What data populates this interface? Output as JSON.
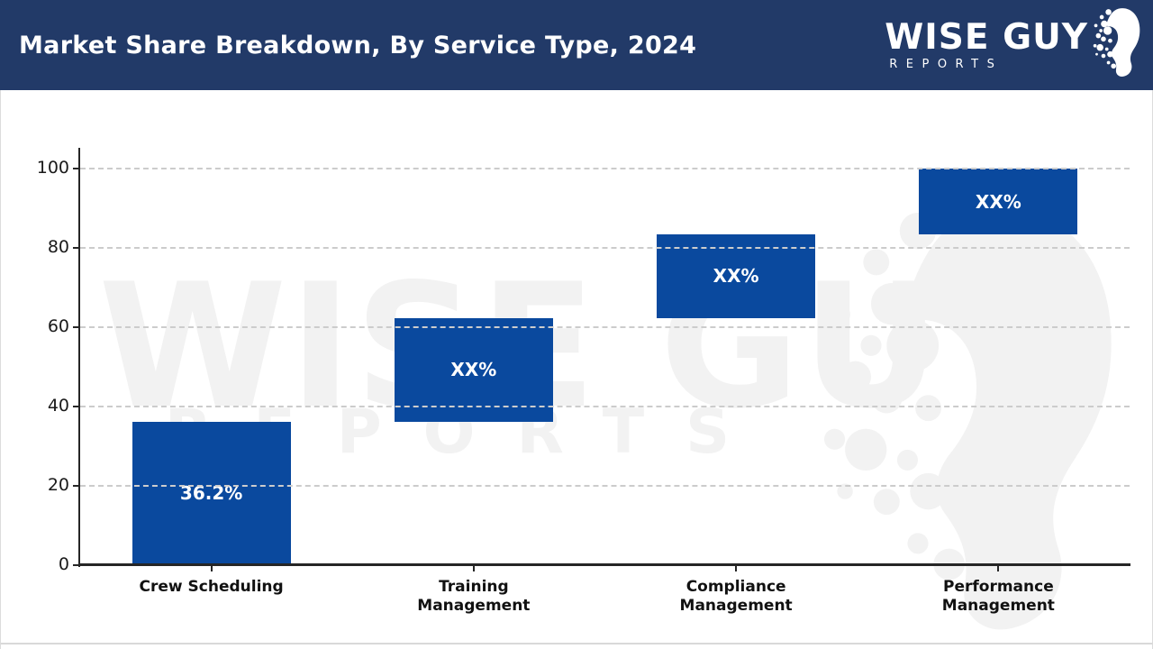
{
  "header": {
    "title": "Market Share Breakdown, By Service Type, 2024",
    "logo": {
      "line1": "WISE GUY",
      "line2": "REPORTS"
    }
  },
  "watermark": {
    "line1": "WISE GUY",
    "line2": "REPORTS"
  },
  "colors": {
    "header_bg": "#223a68",
    "bar": "#0a499e",
    "grid": "#cccccc",
    "axis": "#262626",
    "bar_label": "#ffffff",
    "watermark": "#f2f2f2",
    "border": "#d9d9d9"
  },
  "chart_data": {
    "type": "bar",
    "subtype": "waterfall",
    "title": "Market Share Breakdown, By Service Type, 2024",
    "categories": [
      "Crew Scheduling",
      "Training\nManagement",
      "Compliance\nManagement",
      "Performance\nManagement"
    ],
    "segments": [
      {
        "category": "Crew Scheduling",
        "start": 0,
        "end": 36.2,
        "label": "36.2%"
      },
      {
        "category": "Training Management",
        "start": 36.2,
        "end": 62.3,
        "label": "XX%"
      },
      {
        "category": "Compliance Management",
        "start": 62.3,
        "end": 83.4,
        "label": "XX%"
      },
      {
        "category": "Performance Management",
        "start": 83.4,
        "end": 100,
        "label": "XX%"
      }
    ],
    "yticks": [
      0,
      20,
      40,
      60,
      80,
      100
    ],
    "ylim": [
      0,
      100
    ],
    "xlabel": "",
    "ylabel": "",
    "grid": "dashed-horizontal",
    "legend": "none"
  }
}
